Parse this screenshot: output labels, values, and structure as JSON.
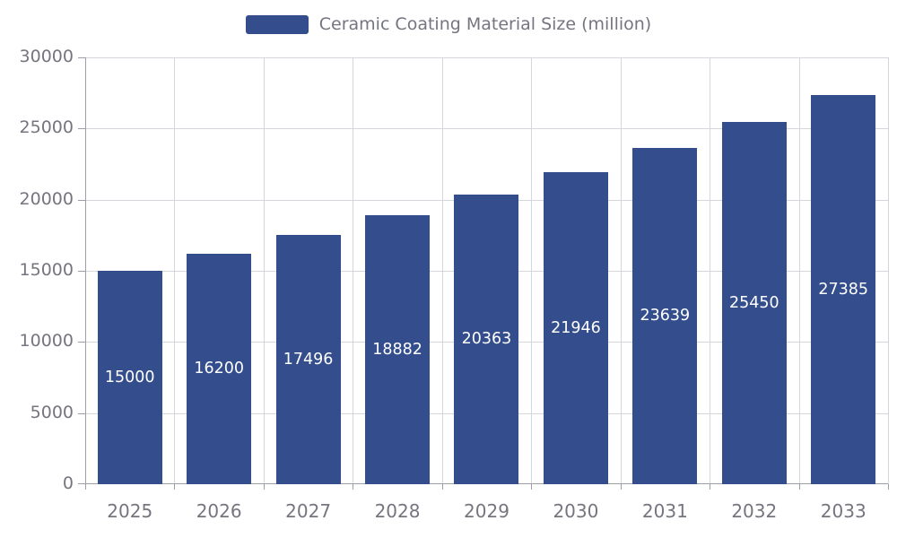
{
  "legend": {
    "label": "Ceramic Coating Material Size (million)"
  },
  "colors": {
    "bar": "#344e8d",
    "grid": "#d4d6dc",
    "axis": "#9aa0a6",
    "axis_text": "#75757f",
    "bar_label_text": "#ffffff"
  },
  "chart_data": {
    "type": "bar",
    "title": "Ceramic Coating Material Size (million)",
    "categories": [
      "2025",
      "2026",
      "2027",
      "2028",
      "2029",
      "2030",
      "2031",
      "2032",
      "2033"
    ],
    "values": [
      15000,
      16200,
      17496,
      18882,
      20363,
      21946,
      23639,
      25450,
      27385
    ],
    "xlabel": "",
    "ylabel": "",
    "ylim": [
      0,
      30000
    ],
    "ytick_step": 5000,
    "yticks": [
      0,
      5000,
      10000,
      15000,
      20000,
      25000,
      30000
    ],
    "grid": true,
    "legend_position": "top",
    "bar_labels_inside": true
  }
}
